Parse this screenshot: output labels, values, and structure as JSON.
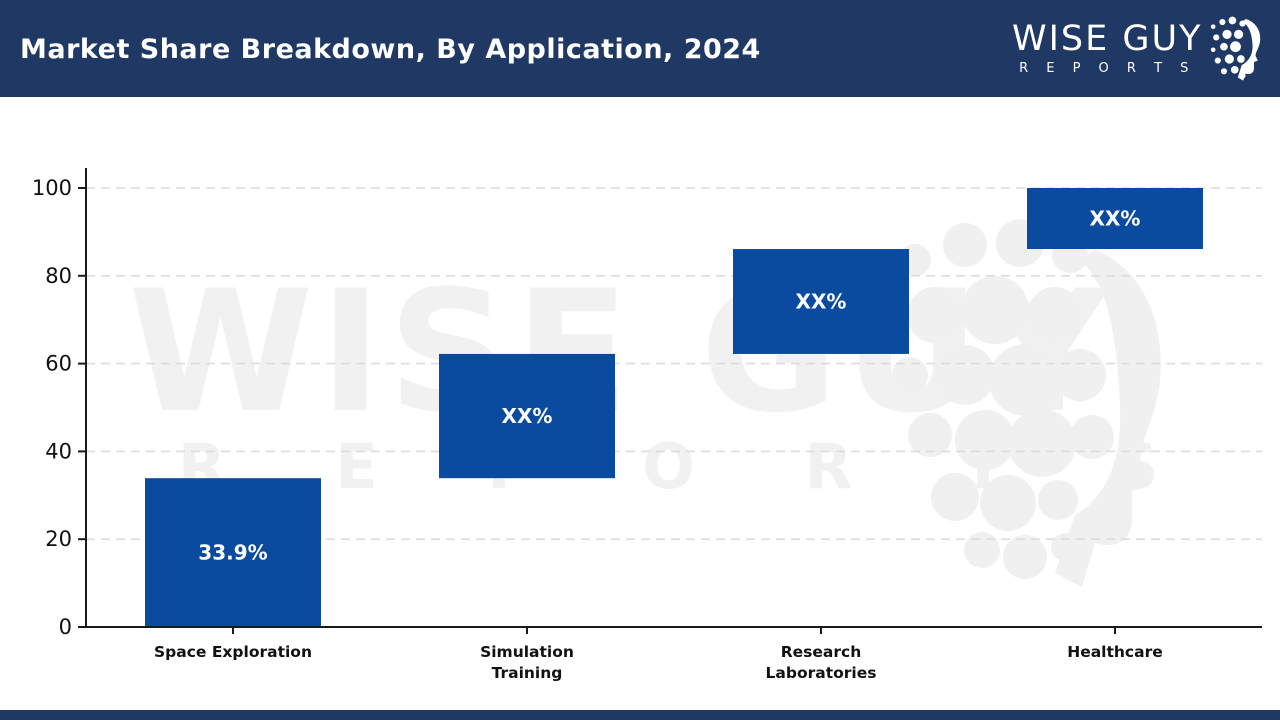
{
  "header": {
    "title": "Market Share Breakdown, By Application, 2024",
    "bg_color": "#1f3864",
    "logo": {
      "wordmark": "WISE GUY",
      "subtext": "R E P O R T S"
    }
  },
  "watermark": {
    "line1": "WISE GUY",
    "line2": "R E P O R T S"
  },
  "chart_data": {
    "type": "bar",
    "subtype": "waterfall",
    "title": "Market Share Breakdown, By Application, 2024",
    "categories": [
      "Space Exploration",
      "Simulation\nTraining",
      "Research\nLaboratories",
      "Healthcare"
    ],
    "segments": [
      {
        "category": "Space Exploration",
        "start": 0,
        "end": 33.9,
        "label": "33.9%"
      },
      {
        "category": "Simulation Training",
        "start": 33.9,
        "end": 62.2,
        "label": "XX%"
      },
      {
        "category": "Research Laboratories",
        "start": 62.2,
        "end": 86.1,
        "label": "XX%"
      },
      {
        "category": "Healthcare",
        "start": 86.1,
        "end": 100,
        "label": "XX%"
      }
    ],
    "xlabel": "",
    "ylabel": "",
    "ylim": [
      0,
      100
    ],
    "yticks": [
      0,
      20,
      40,
      60,
      80,
      100
    ],
    "bar_color": "#0b4b9f",
    "bar_label_color": "#ffffff",
    "axis_color": "#1a1a1a",
    "grid": "dashed",
    "grid_color": "#dcdcdc",
    "legend": "none"
  }
}
